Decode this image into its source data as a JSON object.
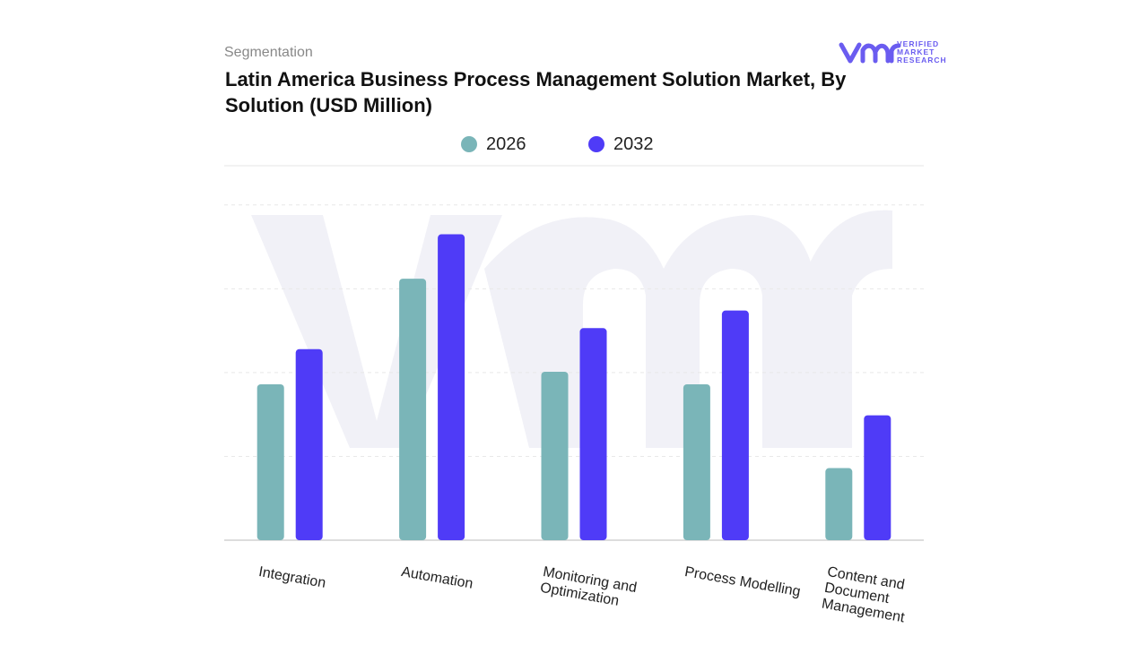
{
  "chart_data": {
    "type": "bar",
    "subtitle": "Segmentation",
    "title": "Latin America Business Process Management Solution Market, By Solution (USD Million)",
    "brand": "VERIFIED MARKET RESEARCH",
    "categories": [
      "Integration",
      "Automation",
      "Monitoring and Optimization",
      "Process Modelling",
      "Content and Document Management"
    ],
    "series": [
      {
        "name": "2026",
        "color": "#7ab5b8",
        "values": [
          1.86,
          3.12,
          2.01,
          1.86,
          0.86
        ]
      },
      {
        "name": "2032",
        "color": "#4f3bf7",
        "values": [
          2.28,
          3.65,
          2.53,
          2.74,
          1.49
        ]
      }
    ],
    "ylim": [
      0,
      4.5
    ],
    "yticks": [
      0,
      1,
      2,
      3,
      4
    ],
    "grid": true
  }
}
